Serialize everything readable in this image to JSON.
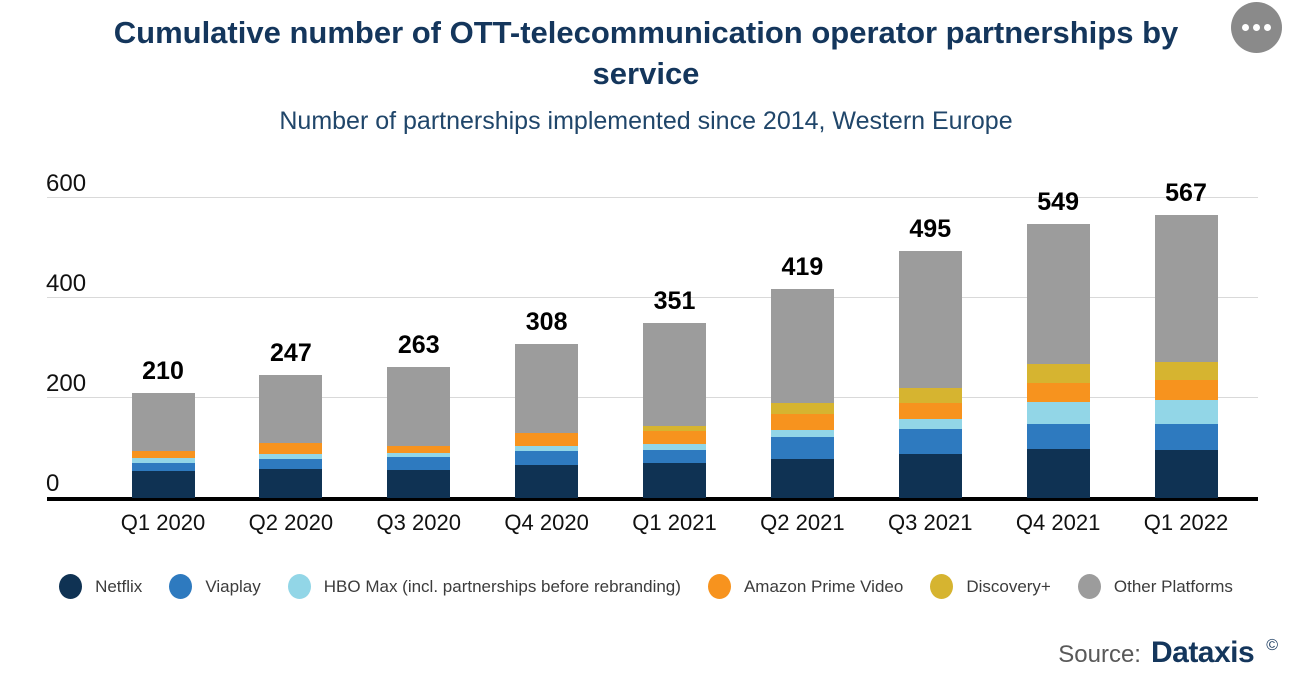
{
  "header": {
    "title": "Cumulative number of OTT-telecommunication operator partnerships by service",
    "subtitle": "Number of partnerships implemented since 2014, Western Europe",
    "menu_icon": "ellipsis-icon"
  },
  "chart_data": {
    "type": "bar",
    "stacked": true,
    "title": "Cumulative number of OTT-telecommunication operator partnerships by service",
    "subtitle": "Number of partnerships implemented since 2014, Western Europe",
    "categories": [
      "Q1 2020",
      "Q2 2020",
      "Q3 2020",
      "Q4 2020",
      "Q1 2021",
      "Q2 2021",
      "Q3 2021",
      "Q4 2021",
      "Q1 2022"
    ],
    "series": [
      {
        "name": "Netflix",
        "color": "#0f3253",
        "values": [
          55,
          58,
          56,
          67,
          70,
          78,
          88,
          98,
          97
        ]
      },
      {
        "name": "Viaplay",
        "color": "#2e7abf",
        "values": [
          16,
          20,
          26,
          27,
          27,
          45,
          50,
          50,
          52
        ]
      },
      {
        "name": "HBO Max (incl. partnerships before rebranding)",
        "color": "#92d6e7",
        "values": [
          10,
          10,
          9,
          10,
          11,
          13,
          21,
          44,
          48
        ]
      },
      {
        "name": "Amazon Prime Video",
        "color": "#f7931e",
        "values": [
          13,
          22,
          14,
          27,
          27,
          33,
          32,
          38,
          39
        ]
      },
      {
        "name": "Discovery+",
        "color": "#d6b430",
        "values": [
          0,
          0,
          0,
          0,
          10,
          22,
          30,
          38,
          36
        ]
      },
      {
        "name": "Other Platforms",
        "color": "#9c9c9c",
        "values": [
          116,
          137,
          158,
          177,
          206,
          228,
          274,
          281,
          295
        ]
      }
    ],
    "totals": [
      210,
      247,
      263,
      308,
      351,
      419,
      495,
      549,
      567
    ],
    "xlabel": "",
    "ylabel": "",
    "y_ticks": [
      0,
      200,
      400,
      600
    ],
    "ylim": [
      0,
      600
    ],
    "grid": true,
    "legend_position": "bottom"
  },
  "footer": {
    "source_label": "Source:",
    "source_name": "Dataxis",
    "source_symbol": "©"
  }
}
